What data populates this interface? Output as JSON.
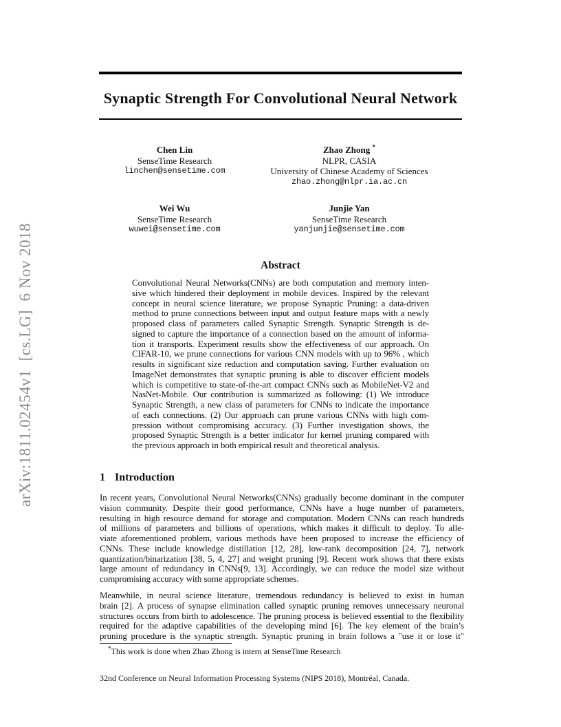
{
  "arxiv_banner": "arXiv:1811.02454v1  [cs.LG]  6 Nov 2018",
  "title": "Synaptic Strength For Convolutional Neural Network",
  "authors": [
    {
      "name": "Chen Lin",
      "mark": "",
      "affil1": "SenseTime Research",
      "affil2": "",
      "email": "linchen@sensetime.com"
    },
    {
      "name": "Zhao Zhong",
      "mark": "*",
      "affil1": "NLPR, CASIA",
      "affil2": "University of Chinese Academy of Sciences",
      "email": "zhao.zhong@nlpr.ia.ac.cn"
    },
    {
      "name": "Wei Wu",
      "mark": "",
      "affil1": "SenseTime Research",
      "affil2": "",
      "email": "wuwei@sensetime.com"
    },
    {
      "name": "Junjie Yan",
      "mark": "",
      "affil1": "SenseTime Research",
      "affil2": "",
      "email": "yanjunjie@sensetime.com"
    }
  ],
  "abstract": {
    "heading": "Abstract",
    "lines": [
      "Convolutional Neural Networks(CNNs) are both computation and memory inten-",
      "sive which hindered their deployment in mobile devices. Inspired by the relevant",
      "concept in neural science literature, we propose Synaptic Pruning: a data-driven",
      "method to prune connections between input and output feature maps with a newly",
      "proposed class of parameters called Synaptic Strength. Synaptic Strength is de-",
      "signed to capture the importance of a connection based on the amount of informa-",
      "tion it transports. Experiment results show the effectiveness of our approach. On",
      "CIFAR-10, we prune connections for various CNN models with up to 96% , which",
      "results in significant size reduction and computation saving. Further evaluation on",
      "ImageNet demonstrates that synaptic pruning is able to discover efficient models",
      "which is competitive to state-of-the-art compact CNNs such as MobileNet-V2 and",
      "NasNet-Mobile. Our contribution is summarized as following: (1) We introduce",
      "Synaptic Strength, a new class of parameters for CNNs to indicate the importance",
      "of each connections. (2) Our approach can prune various CNNs with high com-",
      "pression without compromising accuracy. (3) Further investigation shows, the",
      "proposed Synaptic Strength is a better indicator for kernel pruning compared with",
      "the previous approach in both empirical result and theoretical analysis."
    ]
  },
  "section1": {
    "number": "1",
    "title": "Introduction"
  },
  "paragraph1": {
    "lines": [
      "In recent years, Convolutional Neural Networks(CNNs) gradually become dominant in the computer",
      "vision community.  Despite their good performance, CNNs have a huge number of parameters,",
      "resulting in high resource demand for storage and computation. Modern CNNs can reach hundreds",
      "of millions of parameters and billions of operations, which makes it difficult to deploy. To alle-",
      "viate aforementioned problem, various methods have been proposed to increase the efficiency of",
      "CNNs.  These include knowledge distillation [12, 28], low-rank decomposition [24, 7], network",
      "quantization/binarization [38, 5, 4, 27] and weight pruning [9]. Recent work shows that there exists",
      "large amount of redundancy in CNNs[9, 13]. Accordingly, we can reduce the model size without",
      "compromising accuracy with some appropriate schemes."
    ]
  },
  "paragraph2": {
    "lines": [
      "Meanwhile, in neural science literature, tremendous redundancy is believed to exist in human",
      "brain [2]. A process of synapse elimination called synaptic pruning removes unnecessary neuronal",
      "structures occurs from birth to adolescence. The pruning process is believed essential to the flexibility",
      "required for the adaptive capabilities of the developing mind [6]. The key element of the brain’s",
      "pruning procedure is the synaptic strength. Synaptic pruning in brain follows a \"use it or lose it\""
    ]
  },
  "footnote": {
    "marker": "*",
    "text": "This work is done when Zhao Zhong is intern at SenseTime Research"
  },
  "footer": "32nd Conference on Neural Information Processing Systems (NIPS 2018), Montréal, Canada."
}
